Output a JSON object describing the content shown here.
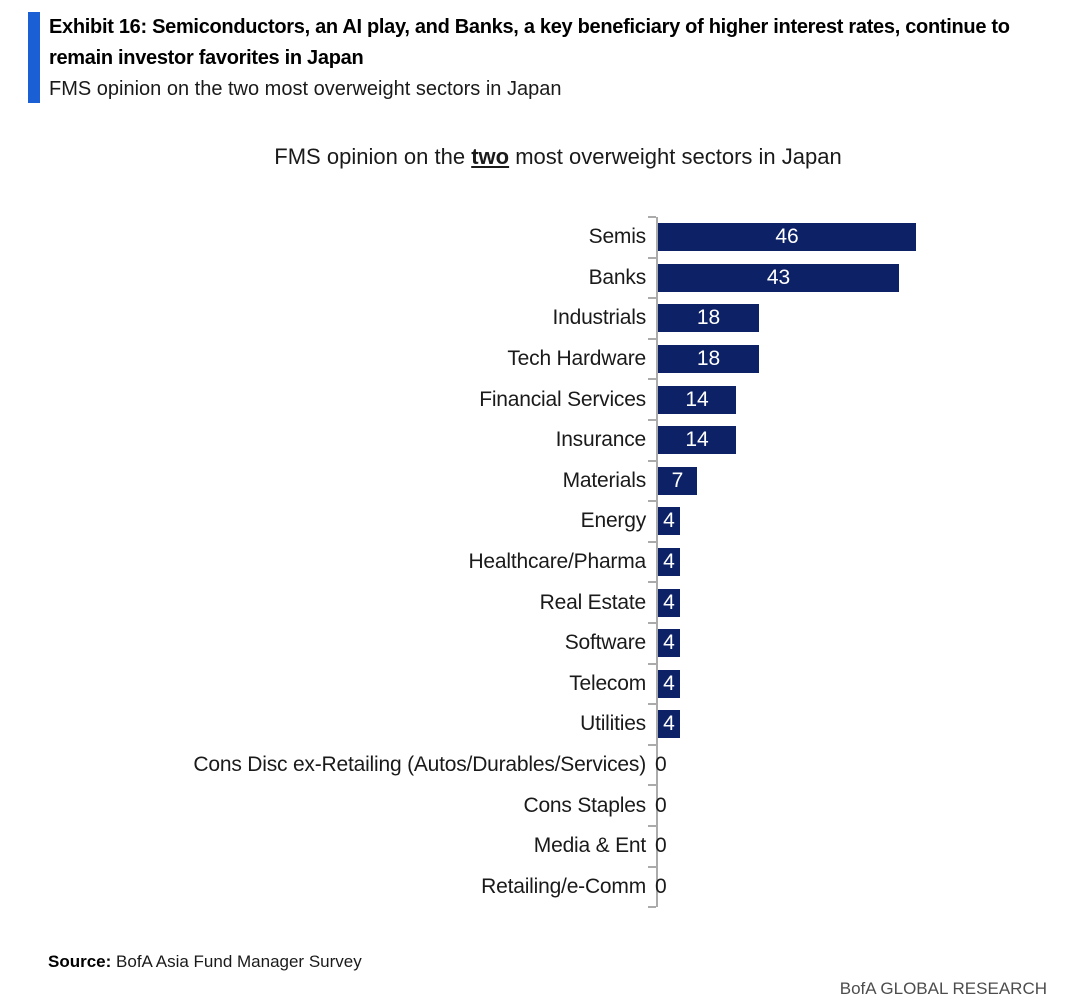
{
  "header": {
    "exhibit_title": "Exhibit 16: Semiconductors, an AI play, and Banks, a key beneficiary of higher interest rates, continue to remain investor favorites in Japan",
    "subtitle": "FMS opinion on the two most overweight sectors in Japan",
    "accent_color": "#1a5fd3"
  },
  "chart_title": {
    "prefix": "FMS opinion on the ",
    "emphasis": "two",
    "suffix": " most overweight sectors in Japan"
  },
  "chart_data": {
    "type": "bar",
    "orientation": "horizontal",
    "title": "FMS opinion on the two most overweight sectors in Japan",
    "categories": [
      "Semis",
      "Banks",
      "Industrials",
      "Tech Hardware",
      "Financial Services",
      "Insurance",
      "Materials",
      "Energy",
      "Healthcare/Pharma",
      "Real Estate",
      "Software",
      "Telecom",
      "Utilities",
      "Cons Disc ex-Retailing (Autos/Durables/Services)",
      "Cons Staples",
      "Media & Ent",
      "Retailing/e-Comm"
    ],
    "values": [
      46,
      43,
      18,
      18,
      14,
      14,
      7,
      4,
      4,
      4,
      4,
      4,
      4,
      0,
      0,
      0,
      0
    ],
    "xlim": [
      0,
      50
    ],
    "bar_color": "#0d2167",
    "value_label_color_inside": "#ffffff",
    "value_label_color_zero": "#1a1a1a",
    "data_labels": true,
    "grid": false,
    "legend": false,
    "axis_color": "#ababab"
  },
  "footer": {
    "source_label": "Source:",
    "source_text": "BofA Asia Fund Manager Survey",
    "brand": "BofA GLOBAL RESEARCH"
  }
}
